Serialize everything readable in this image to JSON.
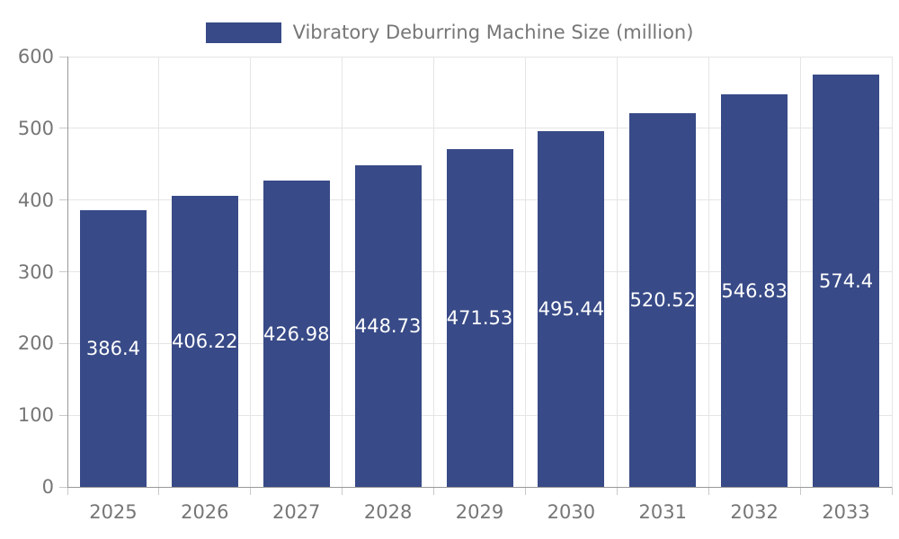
{
  "chart_data": {
    "type": "bar",
    "legend_label": "Vibratory Deburring Machine Size (million)",
    "legend_position": "top-center",
    "categories": [
      "2025",
      "2026",
      "2027",
      "2028",
      "2029",
      "2030",
      "2031",
      "2032",
      "2033"
    ],
    "values": [
      386.4,
      406.22,
      426.98,
      448.73,
      471.53,
      495.44,
      520.52,
      546.83,
      574.4
    ],
    "value_labels": [
      "386.4",
      "406.22",
      "426.98",
      "448.73",
      "471.53",
      "495.44",
      "520.52",
      "546.83",
      "574.4"
    ],
    "xlabel": "",
    "ylabel": "",
    "ylim": [
      0,
      600
    ],
    "y_ticks": [
      0,
      100,
      200,
      300,
      400,
      500,
      600
    ],
    "grid": true,
    "colors": {
      "bar": "#384A87",
      "value_label_text": "#ffffff",
      "axis_text": "#767676",
      "gridline": "#e5e5e5",
      "tick_mark": "#c9c9c9",
      "axis_line": "#999999",
      "background": "#ffffff"
    }
  }
}
